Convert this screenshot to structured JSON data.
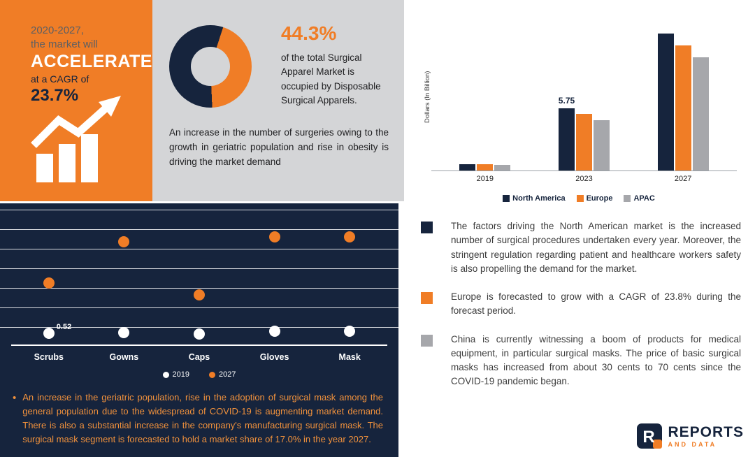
{
  "colors": {
    "orange": "#f07d26",
    "navy": "#16243d",
    "gray": "#a6a7ab",
    "panel_gray": "#d4d5d7",
    "white": "#ffffff"
  },
  "icons": {
    "growth": "growth-arrow-icon",
    "logo_mark": "reports-and-data-logo-icon"
  },
  "promo": {
    "line1": "2020-2027,",
    "line2": "the market will",
    "line3": "ACCELERATE",
    "line4": "at a CAGR of",
    "line5": "23.7%"
  },
  "donut_panel": {
    "value": 44.3,
    "pct": "44.3%",
    "desc": "of the total Surgical Apparel Market is occupied by Disposable Surgical Apparels.",
    "note": "An increase in the number of surgeries owing to the growth in geriatric population and rise in obesity is driving the market demand"
  },
  "chart_data": [
    {
      "type": "bar",
      "title": "",
      "xlabel": "",
      "ylabel": "Dollars (In Billion)",
      "categories": [
        "2019",
        "2023",
        "2027"
      ],
      "series": [
        {
          "name": "North America",
          "color": "#16243d",
          "values": [
            0.6,
            5.75,
            12.6
          ]
        },
        {
          "name": "Europe",
          "color": "#f07d26",
          "values": [
            0.55,
            5.2,
            11.5
          ]
        },
        {
          "name": "APAC",
          "color": "#a6a7ab",
          "values": [
            0.5,
            4.6,
            10.4
          ]
        }
      ],
      "ylim": [
        0,
        13.5
      ],
      "data_labels": [
        {
          "series": 0,
          "category": 1,
          "text": "5.75"
        }
      ],
      "legend_position": "bottom",
      "grid": false
    },
    {
      "type": "scatter",
      "title": "",
      "xlabel": "",
      "ylabel": "",
      "categories": [
        "Scrubs",
        "Gowns",
        "Caps",
        "Gloves",
        "Mask"
      ],
      "series": [
        {
          "name": "2019",
          "color": "#ffffff",
          "values": [
            0.52,
            0.55,
            0.5,
            0.6,
            0.62
          ]
        },
        {
          "name": "2027",
          "color": "#f07d26",
          "values": [
            2.6,
            4.3,
            2.1,
            4.5,
            4.5
          ]
        }
      ],
      "ylim": [
        0,
        5.6
      ],
      "data_labels": [
        {
          "series": 0,
          "category": 0,
          "text": "0.52"
        }
      ],
      "legend_position": "bottom",
      "grid": true
    }
  ],
  "right_bullets": [
    {
      "color": "#16243d",
      "text": "The factors driving the North American market is the increased number of surgical procedures undertaken every year. Moreover, the stringent regulation regarding patient and healthcare workers safety is also propelling the demand for the market."
    },
    {
      "color": "#f07d26",
      "text": "Europe is forecasted to grow with a CAGR of 23.8% during the forecast period."
    },
    {
      "color": "#a6a7ab",
      "text": "China is currently witnessing a boom of products for medical equipment, in particular surgical masks. The price of basic surgical masks has increased from about 30 cents to 70 cents since the COVID-19 pandemic began."
    }
  ],
  "bottom_note": "An increase in the geriatric population, rise in the adoption of surgical mask among the general population due to the widespread of COVID-19 is augmenting market demand. There is also a substantial increase in the company's manufacturing surgical mask. The surgical mask segment is forecasted to hold a market share of 17.0% in the year 2027.",
  "logo": {
    "mark": "R",
    "name": "REPORTS",
    "sub": "AND DATA"
  }
}
